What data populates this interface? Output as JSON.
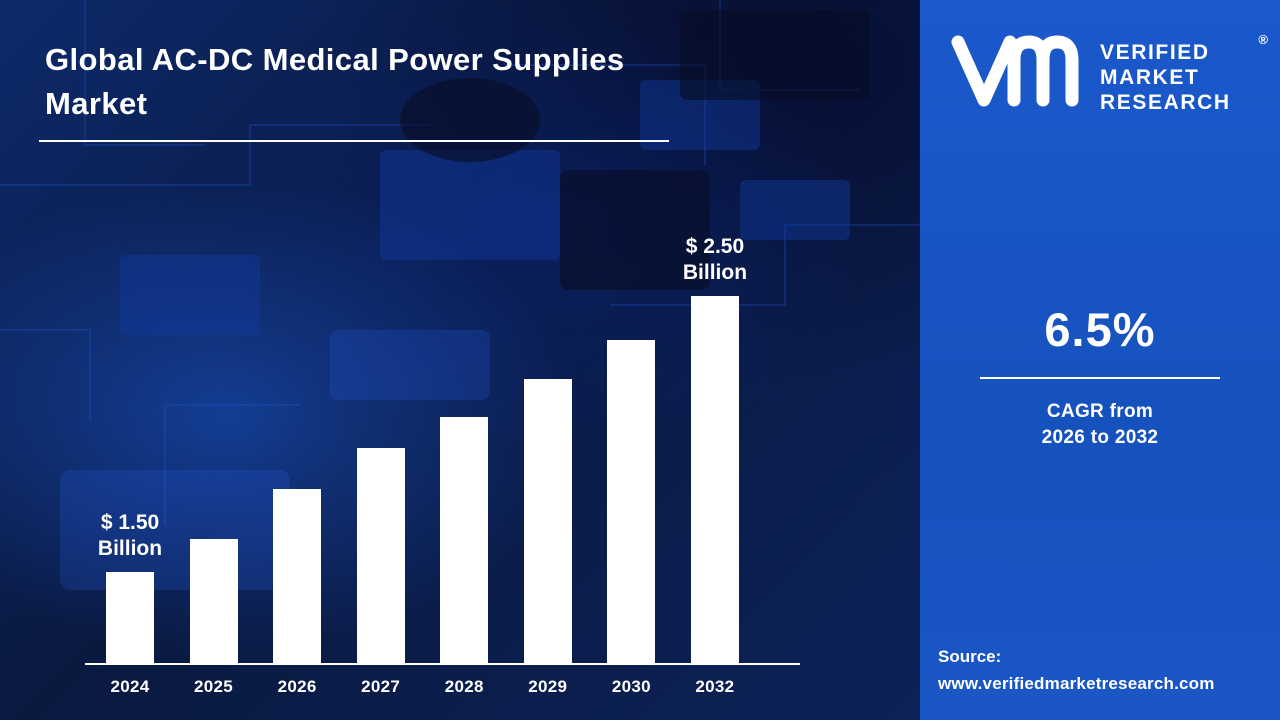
{
  "title": "Global AC-DC Medical Power Supplies Market",
  "logo": {
    "brand_lines": [
      "VERIFIED",
      "MARKET",
      "RESEARCH"
    ],
    "registered_mark": "®"
  },
  "stats": {
    "cagr_value": "6.5%",
    "cagr_label_line1": "CAGR from",
    "cagr_label_line2": "2026 to 2032"
  },
  "source": {
    "label": "Source:",
    "url": "www.verifiedmarketresearch.com"
  },
  "chart_data": {
    "type": "bar",
    "title": "Global AC-DC Medical Power Supplies Market",
    "unit": "USD Billion",
    "categories": [
      "2024",
      "2025",
      "2026",
      "2027",
      "2028",
      "2029",
      "2030",
      "2032"
    ],
    "values": [
      1.5,
      1.62,
      1.8,
      1.95,
      2.06,
      2.2,
      2.34,
      2.5
    ],
    "annotations": [
      {
        "index": 0,
        "lines": [
          "$ 1.50",
          "Billion"
        ]
      },
      {
        "index": 7,
        "lines": [
          "$ 2.50",
          "Billion"
        ]
      }
    ],
    "bar_color": "#ffffff",
    "baseline_color": "#ffffff",
    "axis_min_display": 1.17,
    "axis_max_display": 2.62,
    "grid": false,
    "legend": false
  },
  "colors": {
    "left_background": "#0a1940",
    "right_panel": "#1a56c5",
    "text": "#ffffff"
  }
}
